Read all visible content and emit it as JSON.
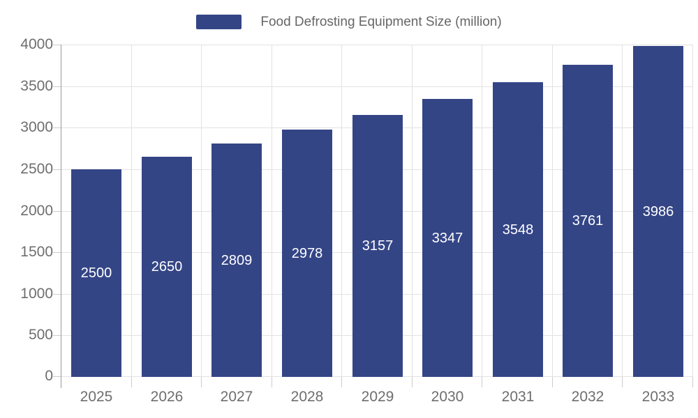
{
  "chart": {
    "legend": "Food Defrosting Equipment Size (million)",
    "colors": {
      "bar": "#344586",
      "bar_label_text": "#ffffff",
      "axis_line": "#999999",
      "gridline": "#e2e2e2",
      "tick": "#cccccc",
      "axis_text": "#6e6e6e",
      "legend_text": "#666666",
      "background": "#ffffff"
    }
  },
  "chart_data": {
    "type": "bar",
    "title": "Food Defrosting Equipment Size (million)",
    "categories": [
      "2025",
      "2026",
      "2027",
      "2028",
      "2029",
      "2030",
      "2031",
      "2032",
      "2033"
    ],
    "values": [
      2500,
      2650,
      2809,
      2978,
      3157,
      3347,
      3548,
      3761,
      3986
    ],
    "xlabel": "",
    "ylabel": "",
    "ylim": [
      0,
      4000
    ],
    "ytick_step": 500,
    "yticks": [
      0,
      500,
      1000,
      1500,
      2000,
      2500,
      3000,
      3500,
      4000
    ],
    "grid": true,
    "legend_position": "top",
    "bar_value_labels_inside": true
  }
}
